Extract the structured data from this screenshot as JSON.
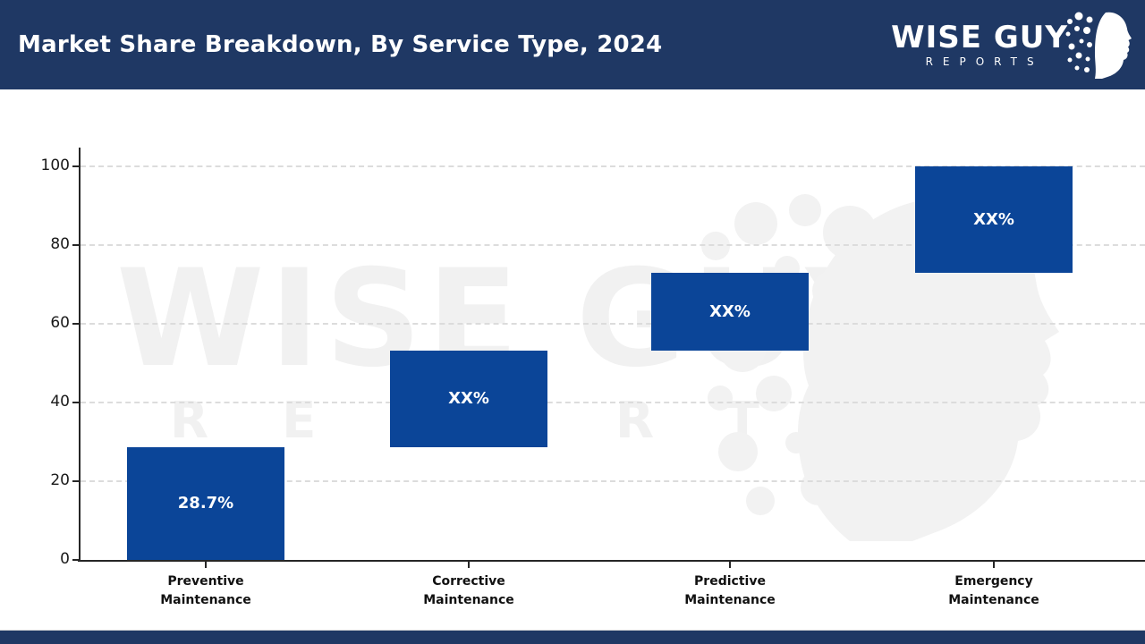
{
  "header": {
    "title": "Market Share Breakdown, By Service Type, 2024",
    "logo": {
      "line1": "WISE GUY",
      "line2": "REPORTS"
    }
  },
  "watermark": {
    "line1": "WISE GUY",
    "line2": "REPORTS"
  },
  "colors": {
    "header_navy": "#1f3864",
    "bar_blue": "#0b4598",
    "bar_label_text": "#ffffff",
    "gridline": "#dcdcdc",
    "axis": "#262626",
    "watermark_gray": "#f1f1f1"
  },
  "chart_data": {
    "type": "bar",
    "subtype": "waterfall",
    "title": "Market Share Breakdown, By Service Type, 2024",
    "categories": [
      "Preventive Maintenance",
      "Corrective Maintenance",
      "Predictive Maintenance",
      "Emergency Maintenance"
    ],
    "bars": [
      {
        "category": "Preventive Maintenance",
        "start": 0,
        "end": 28.7,
        "label": "28.7%"
      },
      {
        "category": "Corrective Maintenance",
        "start": 28.7,
        "end": 53.2,
        "label": "XX%"
      },
      {
        "category": "Predictive Maintenance",
        "start": 53.2,
        "end": 72.9,
        "label": "XX%"
      },
      {
        "category": "Emergency Maintenance",
        "start": 72.9,
        "end": 100,
        "label": "XX%"
      }
    ],
    "yticks": [
      0,
      20,
      40,
      60,
      80,
      100
    ],
    "ylim": [
      0,
      105
    ],
    "xlabel": "",
    "ylabel": "",
    "grid": "horizontal-dashed",
    "legend": "none",
    "bar_color": "#0b4598",
    "bar_label_color": "#ffffff"
  }
}
